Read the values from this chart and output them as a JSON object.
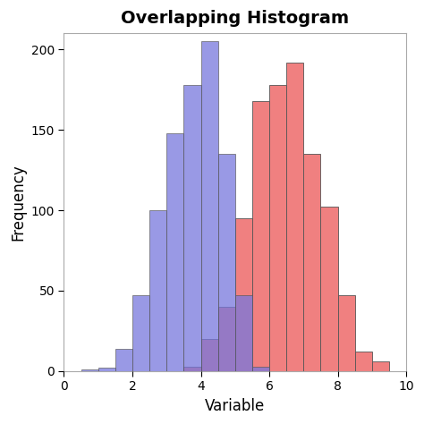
{
  "title": "Overlapping Histogram",
  "xlabel": "Variable",
  "ylabel": "Frequency",
  "xlim": [
    0,
    10
  ],
  "ylim": [
    0,
    210
  ],
  "xticks": [
    0,
    2,
    4,
    6,
    8,
    10
  ],
  "yticks": [
    0,
    50,
    100,
    150,
    200
  ],
  "blue_color": "#7777dd",
  "red_color": "#f08080",
  "blue_bins": [
    0.5,
    1.0,
    1.5,
    2.0,
    2.5,
    3.0,
    3.5,
    4.0,
    4.5,
    5.0,
    5.5
  ],
  "blue_heights": [
    1,
    2,
    14,
    47,
    100,
    148,
    178,
    205,
    135,
    47,
    3
  ],
  "red_bins": [
    3.5,
    4.0,
    4.5,
    5.0,
    5.5,
    6.0,
    6.5,
    7.0,
    7.5,
    8.0,
    8.5,
    9.0
  ],
  "red_heights": [
    3,
    20,
    40,
    95,
    168,
    178,
    192,
    135,
    102,
    47,
    12,
    6
  ],
  "bin_width": 0.5,
  "background_color": "#ffffff",
  "title_fontsize": 14,
  "label_fontsize": 12,
  "tick_fontsize": 10,
  "edge_color": "#555555",
  "plot_bg": "#f5f5f5",
  "figsize": [
    4.74,
    4.74
  ],
  "dpi": 100
}
